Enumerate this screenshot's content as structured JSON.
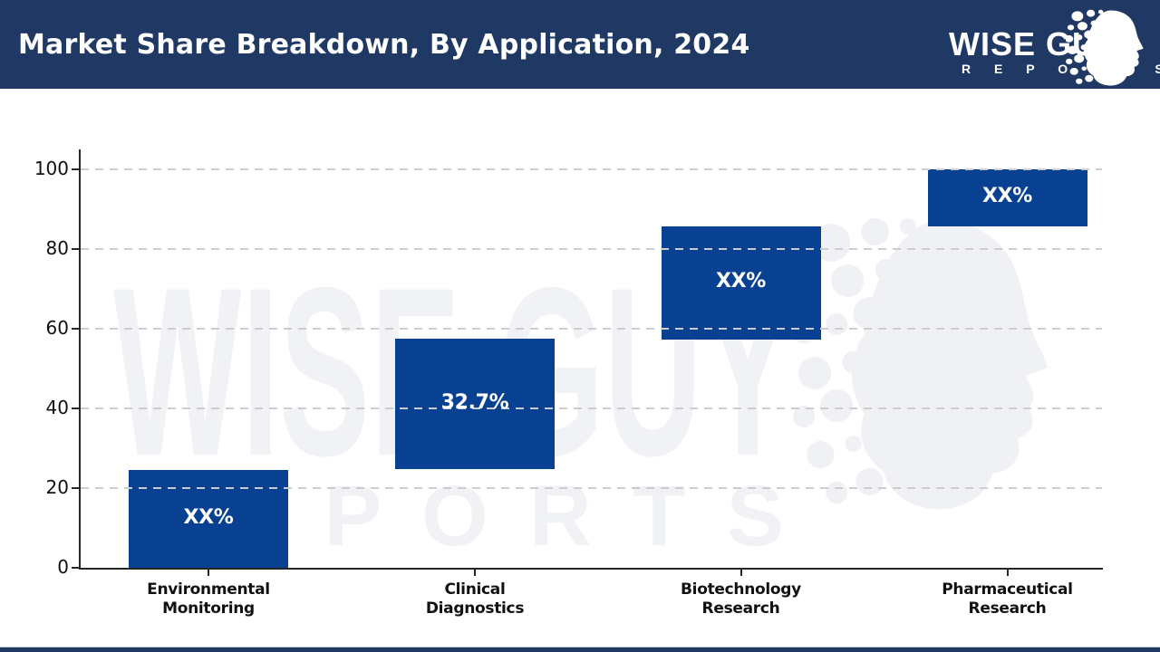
{
  "header": {
    "title": "Market Share Breakdown, By Application, 2024",
    "logo": {
      "name": "WISE GUY",
      "sub": "R E P O R T S"
    }
  },
  "watermark": {
    "line1": "WISE GUY",
    "line2": "R E P O R T S"
  },
  "chart_data": {
    "type": "bar",
    "subtype": "floating-waterfall",
    "title": "Market Share Breakdown, By Application, 2024",
    "categories": [
      "Environmental Monitoring",
      "Clinical Diagnostics",
      "Biotechnology Research",
      "Pharmaceutical Research"
    ],
    "bars": [
      {
        "label": "XX%",
        "start": 0,
        "end": 24.5
      },
      {
        "label": "32.7%",
        "start": 24.7,
        "end": 57.4
      },
      {
        "label": "XX%",
        "start": 57.2,
        "end": 85.7
      },
      {
        "label": "XX%",
        "start": 85.7,
        "end": 100
      }
    ],
    "xlabel": "",
    "ylabel": "",
    "ylim": [
      0,
      105
    ],
    "yticks": [
      0,
      20,
      40,
      60,
      80,
      100
    ],
    "grid": "horizontal-dashed",
    "legend": "none",
    "bar_color": "#084191",
    "bar_label_color": "#ffffff"
  },
  "colors": {
    "header_bg": "#1f3864",
    "footer_bg": "#1f3864",
    "axis": "#262626",
    "gridline": "#cdcdcd",
    "watermark": "#f1f2f6",
    "bar": "#084191"
  }
}
